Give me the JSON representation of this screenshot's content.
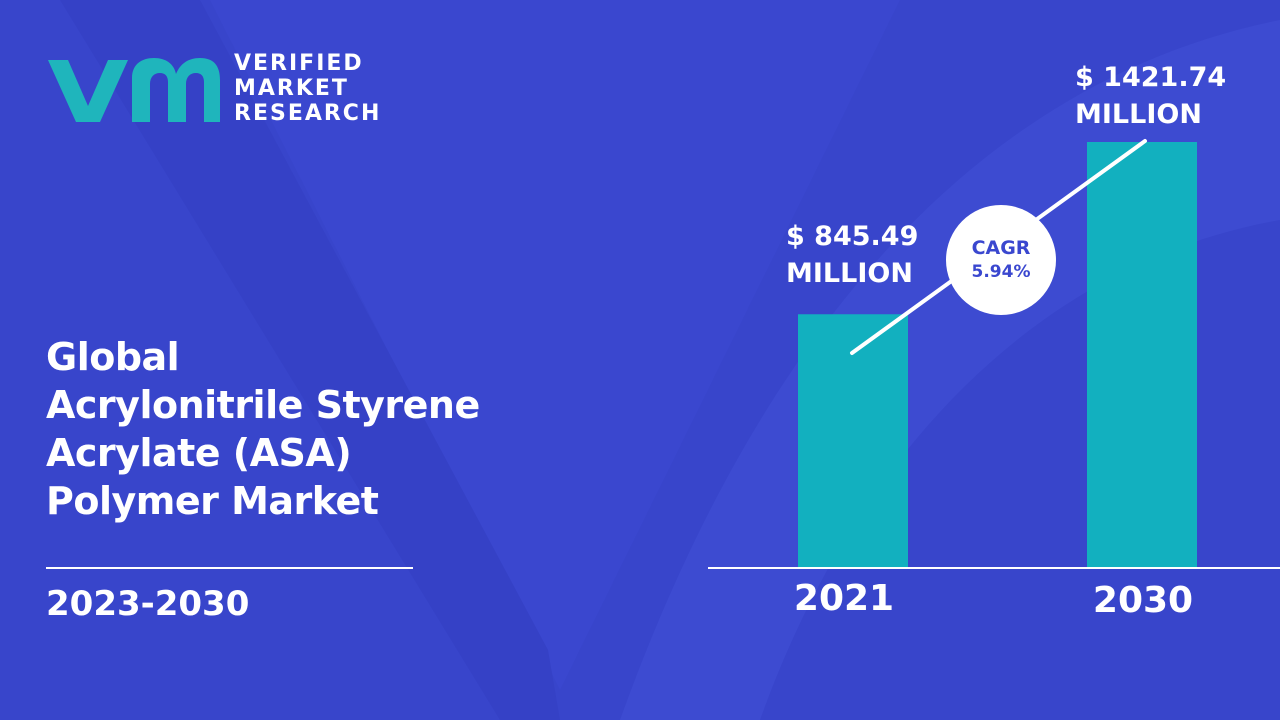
{
  "brand": {
    "lines": [
      "VERIFIED",
      "MARKET",
      "RESEARCH"
    ],
    "mark_color": "#1fb5bc"
  },
  "title": {
    "lines": [
      "Global",
      "Acrylonitrile Styrene",
      "Acrylate (ASA)",
      "Polymer Market"
    ],
    "period": "2023-2030"
  },
  "cagr": {
    "label": "CAGR",
    "value": "5.94%"
  },
  "colors": {
    "background": "#3a47cf",
    "bar": "#12b0bf",
    "text": "#ffffff"
  },
  "chart_data": {
    "type": "bar",
    "categories": [
      "2021",
      "2030"
    ],
    "values": [
      845.49,
      1421.74
    ],
    "value_labels": [
      [
        "$ 845.49",
        "MILLION"
      ],
      [
        "$ 1421.74",
        "MILLION"
      ]
    ],
    "ylim": [
      0,
      1421.74
    ],
    "grid": false
  }
}
